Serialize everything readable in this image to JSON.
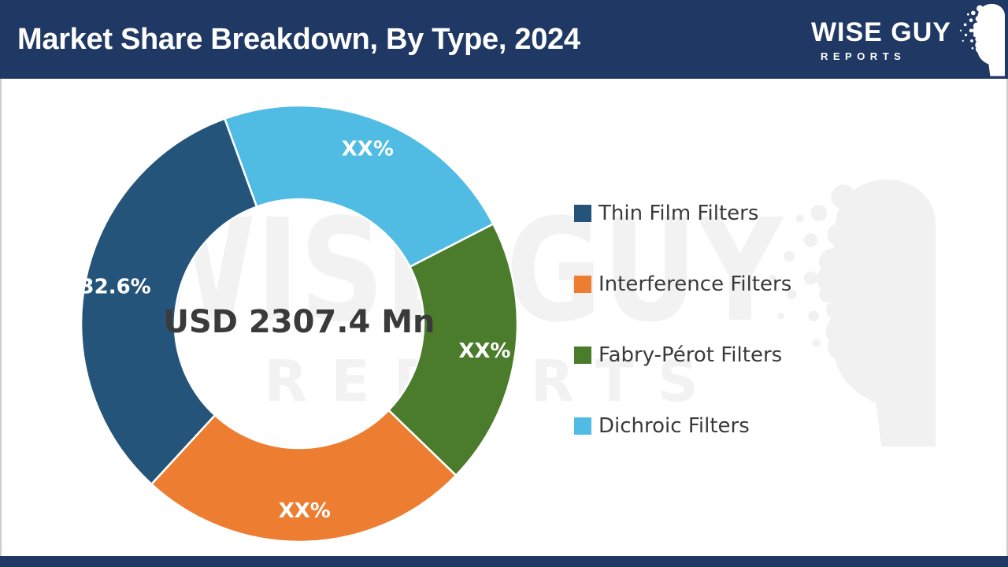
{
  "header": {
    "title": "Market Share Breakdown, By Type, 2024",
    "bg_color": "#1f3864",
    "logo": {
      "line1": "WISE GUY",
      "line2": "REPORTS"
    }
  },
  "watermark": {
    "line1": "WISE GUY",
    "line2": "REPORTS",
    "color": "#f2f2f2"
  },
  "chart_data": {
    "type": "pie",
    "subtype": "donut",
    "center_label": "USD 2307.4 Mn",
    "start_angle_deg": 110,
    "direction": "clockwise",
    "legend_position": "right",
    "segments": [
      {
        "id": "thin-film-filters",
        "label": "Thin Film Filters",
        "value_label": "32.6%",
        "pct_estimate": 32.6,
        "color": "#24547a"
      },
      {
        "id": "interference-filters",
        "label": "Interference Filters",
        "value_label": "XX%",
        "pct_estimate": 24.6,
        "color": "#ed7d31"
      },
      {
        "id": "fabry-perot-filters",
        "label": "Fabry-Pérot Filters",
        "value_label": "XX%",
        "pct_estimate": 19.8,
        "color": "#4a7c2b"
      },
      {
        "id": "dichroic-filters",
        "label": "Dichroic Filters",
        "value_label": "XX%",
        "pct_estimate": 23.0,
        "color": "#50bce4"
      }
    ],
    "draw_order": [
      3,
      2,
      1,
      0
    ]
  },
  "colors": {
    "header_bg": "#1f3864",
    "footer_bg": "#1f3864",
    "center_text": "#3a3a3a",
    "legend_text": "#3a3a3a",
    "value_label_text": "#ffffff",
    "frame_border": "#cdcdcd"
  }
}
